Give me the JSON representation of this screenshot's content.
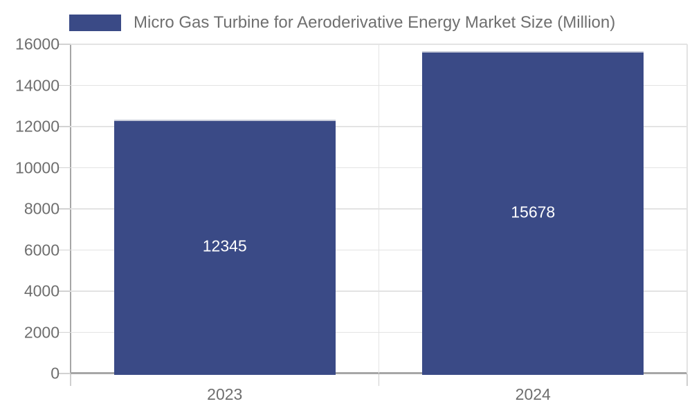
{
  "legend": {
    "label": "Micro Gas Turbine for Aeroderivative Energy Market Size (Million)"
  },
  "chart_data": {
    "type": "bar",
    "title": "Micro Gas Turbine for Aeroderivative Energy Market Size (Million)",
    "categories": [
      "2023",
      "2024"
    ],
    "series": [
      {
        "name": "Micro Gas Turbine for Aeroderivative Energy Market Size (Million)",
        "values": [
          12345,
          15678
        ]
      }
    ],
    "value_labels": [
      "12345",
      "15678"
    ],
    "xlabel": "",
    "ylabel": "",
    "ylim": [
      0,
      16000
    ],
    "ytick_step": 2000,
    "ytick_labels": [
      "0",
      "2000",
      "4000",
      "6000",
      "8000",
      "10000",
      "12000",
      "14000",
      "16000"
    ],
    "grid": true,
    "legend_position": "top-left",
    "colors": {
      "bar_fill": "#3a4a86",
      "bar_top_edge": "#c6cad8",
      "value_label_text": "#ffffff",
      "axis_line": "#a6a6a6",
      "gridline": "#e3e3e3",
      "tick_text": "#6e6e6e",
      "legend_text": "#6f6f6f",
      "background": "#ffffff"
    }
  }
}
